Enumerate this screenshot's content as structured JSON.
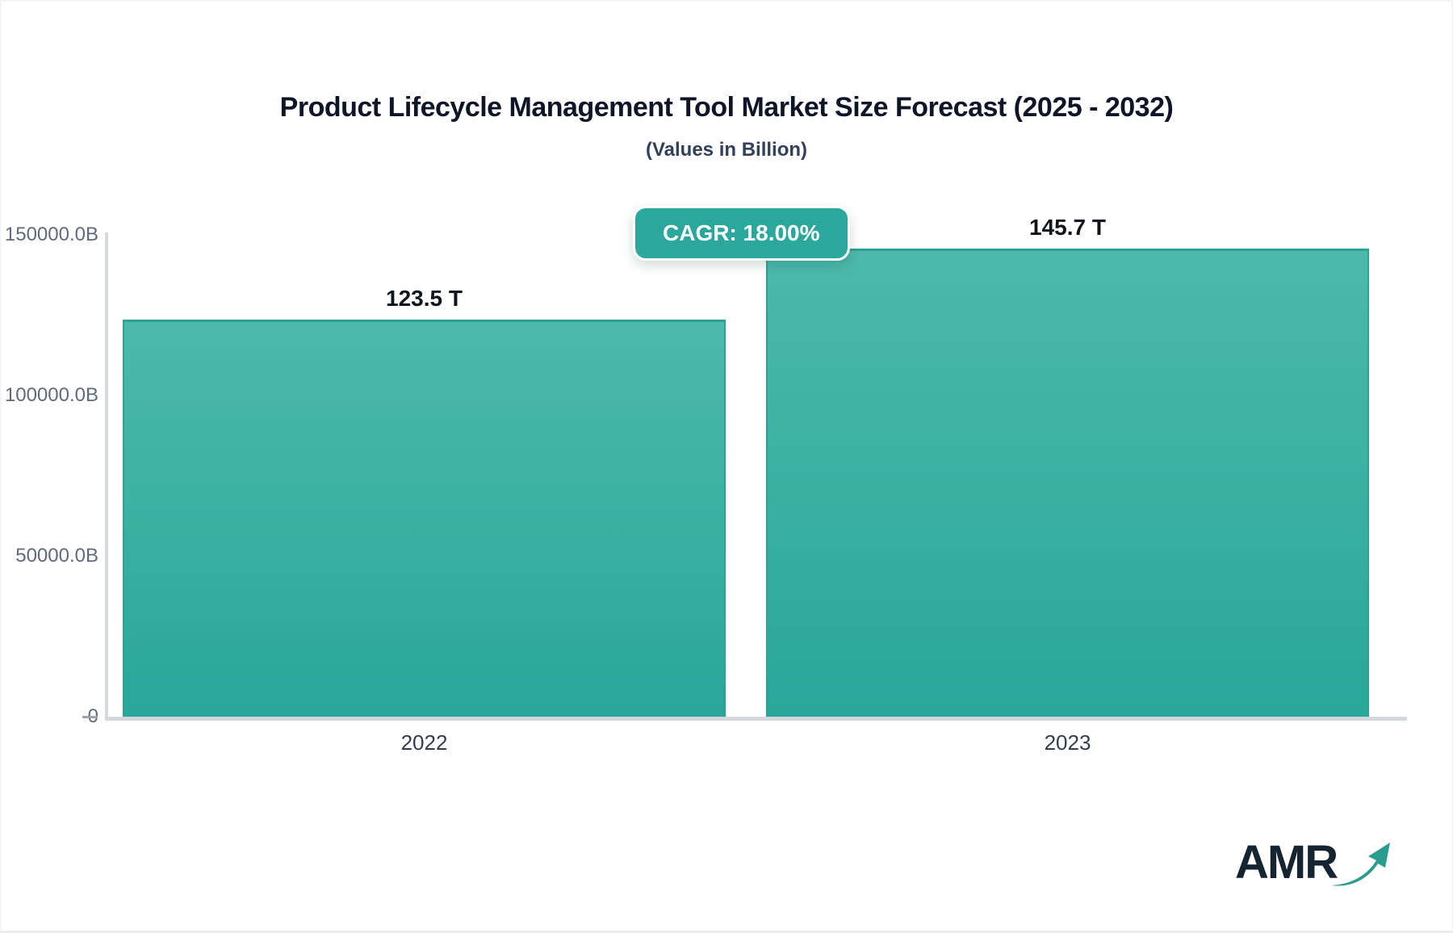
{
  "title": "Product Lifecycle Management Tool Market Size Forecast (2025 - 2032)",
  "subtitle": "(Values in Billion)",
  "badge": {
    "label": "CAGR: 18.00%"
  },
  "logo": {
    "text": "AMR",
    "arrow_icon": "trend-up-arrow-icon"
  },
  "colors": {
    "bar_gradient_top": "#4cb9ac",
    "bar_gradient_bottom": "#29a79a",
    "bar_edge": "#2ea195",
    "badge_background": "#2aa89b",
    "badge_text": "#ffffff",
    "axis_line": "#d5d8de",
    "tick_text": "#5f6b7a",
    "title_text": "#0e1526",
    "logo_arrow": "#2a9c90"
  },
  "chart_data": {
    "type": "bar",
    "title": "Product Lifecycle Management Tool Market Size Forecast (2025 - 2032)",
    "subtitle": "(Values in Billion)",
    "cagr_percent": "18.00%",
    "categories": [
      "2022",
      "2023"
    ],
    "values": [
      123500,
      145700
    ],
    "value_labels": [
      "123.5 T",
      "145.7 T"
    ],
    "unit": "Billion",
    "y_ticks": [
      {
        "value": 150000,
        "label": "150000.0B"
      },
      {
        "value": 100000,
        "label": "100000.0B"
      },
      {
        "value": 50000,
        "label": "50000.0B"
      },
      {
        "value": 0,
        "label": "0"
      }
    ],
    "ylim": [
      0,
      150000
    ],
    "grid": false,
    "legend": false
  }
}
